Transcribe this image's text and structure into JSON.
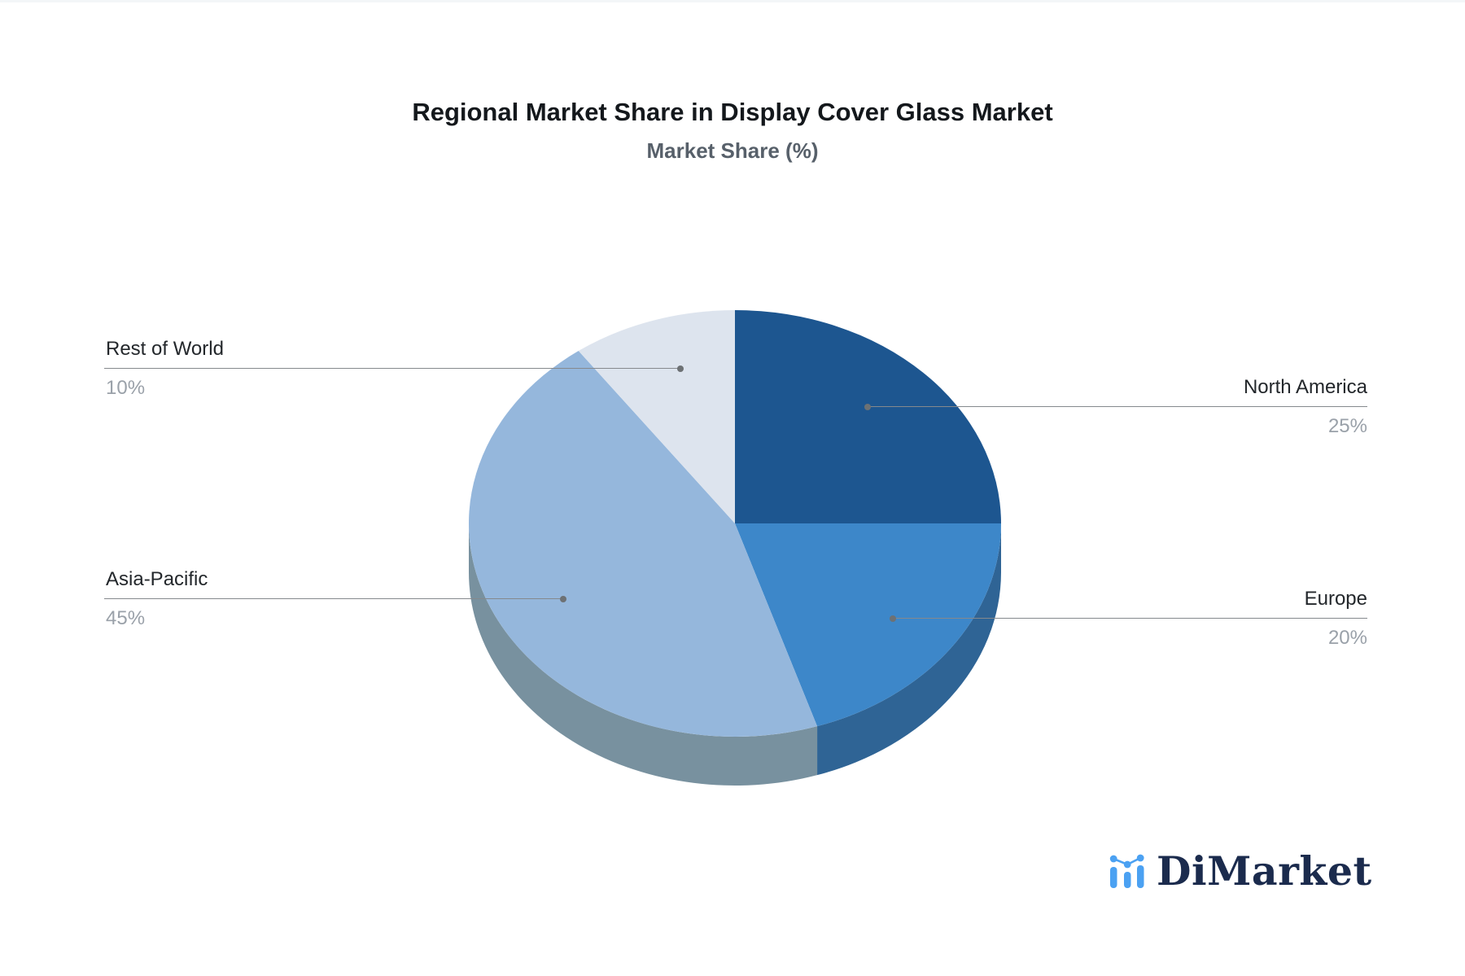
{
  "header": {
    "title": "Regional Market Share in Display Cover Glass Market",
    "subtitle": "Market Share (%)"
  },
  "chart_data": {
    "type": "pie",
    "title": "Regional Market Share in Display Cover Glass Market",
    "subtitle": "Market Share (%)",
    "unit": "%",
    "effect": "3d",
    "direction": "clockwise",
    "start_angle_deg": 0,
    "legend_position": "callout-labels",
    "categories": [
      "North America",
      "Europe",
      "Asia-Pacific",
      "Rest of World"
    ],
    "values": [
      25,
      20,
      45,
      10
    ],
    "labels": [
      "25%",
      "20%",
      "45%",
      "10%"
    ],
    "colors": [
      "#1d5690",
      "#3d87c9",
      "#95b7dc",
      "#dde4ee"
    ],
    "side_colors": [
      "#17477a",
      "#2f6495",
      "#78919f",
      "#c2ccd9"
    ]
  },
  "callouts": [
    {
      "name": "North America",
      "value": "25%"
    },
    {
      "name": "Europe",
      "value": "20%"
    },
    {
      "name": "Asia-Pacific",
      "value": "45%"
    },
    {
      "name": "Rest of World",
      "value": "10%"
    }
  ],
  "logo": {
    "text": "DiMarket",
    "icon": "bar-line-chart-icon",
    "accent_color": "#4ba1f2",
    "text_color": "#1b2b4d"
  },
  "palette": {
    "leader_line": "#85898d",
    "leader_dot": "#6d7174",
    "label_text": "#23272b",
    "value_text": "#9aa1a9",
    "title_text": "#14181c",
    "subtitle_text": "#57606a"
  }
}
